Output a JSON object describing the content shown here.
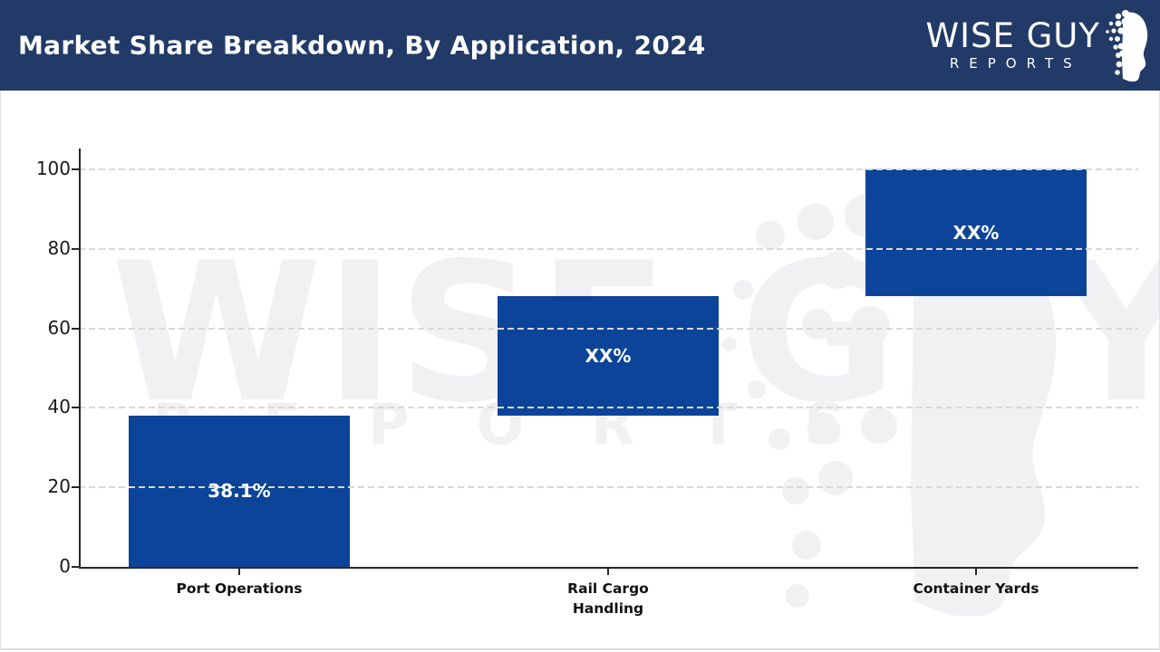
{
  "header": {
    "title": "Market Share Breakdown, By Application, 2024",
    "bg_color": "#213a67",
    "logo": {
      "wordmark": "WISE GUY",
      "subtitle": "REPORTS"
    }
  },
  "watermark": {
    "line1": "WISE GUY",
    "line2": "REPORTS"
  },
  "chart_data": {
    "type": "bar",
    "subtype": "waterfall-cumulative",
    "title": "Market Share Breakdown, By Application, 2024",
    "xlabel": "",
    "ylabel": "",
    "categories": [
      "Port Operations",
      "Rail Cargo\nHandling",
      "Container Yards"
    ],
    "segments": [
      {
        "category": "Port Operations",
        "start": 0,
        "end": 38.1,
        "label": "38.1%"
      },
      {
        "category": "Rail Cargo Handling",
        "start": 38.1,
        "end": 68.1,
        "label": "XX%"
      },
      {
        "category": "Container Yards",
        "start": 68.1,
        "end": 100,
        "label": "XX%"
      }
    ],
    "yticks": [
      0,
      20,
      40,
      60,
      80,
      100
    ],
    "ylim": [
      0,
      105
    ],
    "grid": true,
    "grid_style": "dashed",
    "bar_color": "#0b4499",
    "bar_label_color": "#ffffff",
    "grid_color": "#d8d8d8",
    "axis_color": "#262626",
    "legend": null
  },
  "colors": {
    "header_navy": "#213a67",
    "bar_blue": "#0b4499",
    "watermark_gray": "#f1f1f4",
    "white": "#ffffff"
  }
}
